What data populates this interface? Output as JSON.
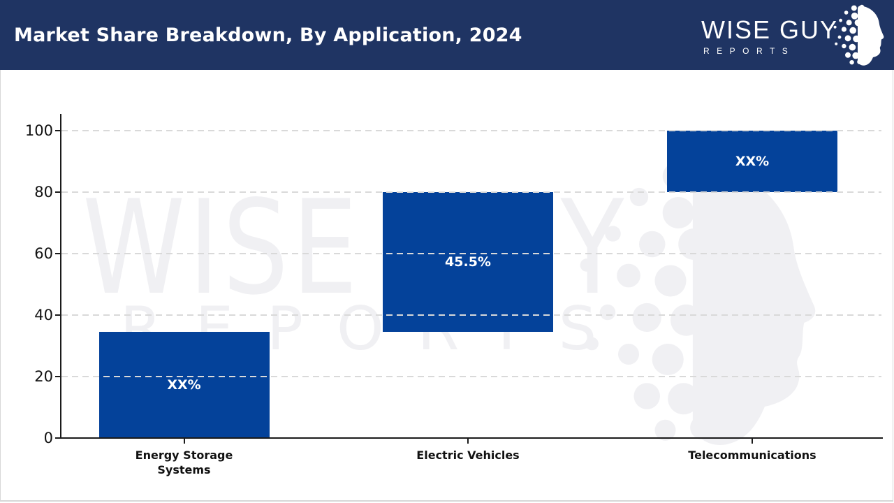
{
  "header": {
    "title": "Market Share Breakdown, By Application, 2024",
    "brand": {
      "name": "WISE GUY",
      "sub": "REPORTS"
    }
  },
  "watermark": {
    "line1": "WISE GUY",
    "line2": "REPORTS"
  },
  "chart_data": {
    "type": "bar",
    "subtype": "stacked-range-segments (waterfall style, each bar starts where previous ends)",
    "title": "Market Share Breakdown, By Application, 2024",
    "categories": [
      "Energy Storage Systems",
      "Electric Vehicles",
      "Telecommunications"
    ],
    "series": [
      {
        "name": "Market share (%)",
        "segments": [
          {
            "category": "Energy Storage Systems",
            "start": 0,
            "end": 34.5,
            "label": "XX%"
          },
          {
            "category": "Electric Vehicles",
            "start": 34.5,
            "end": 80,
            "label": "45.5%"
          },
          {
            "category": "Telecommunications",
            "start": 80,
            "end": 100,
            "label": "XX%"
          }
        ]
      }
    ],
    "xlabel": "",
    "ylabel": "",
    "ylim": [
      0,
      100
    ],
    "yticks": [
      0,
      20,
      40,
      60,
      80,
      100
    ],
    "grid": "horizontal-dashed-above-bars",
    "legend": "none",
    "colors": {
      "bar": "#04429a",
      "grid": "#d9d9d9",
      "axis": "#1a1a1a",
      "bar_label": "#ffffff",
      "header_bg": "#1f3463",
      "watermark": "#f0f0f3"
    }
  }
}
